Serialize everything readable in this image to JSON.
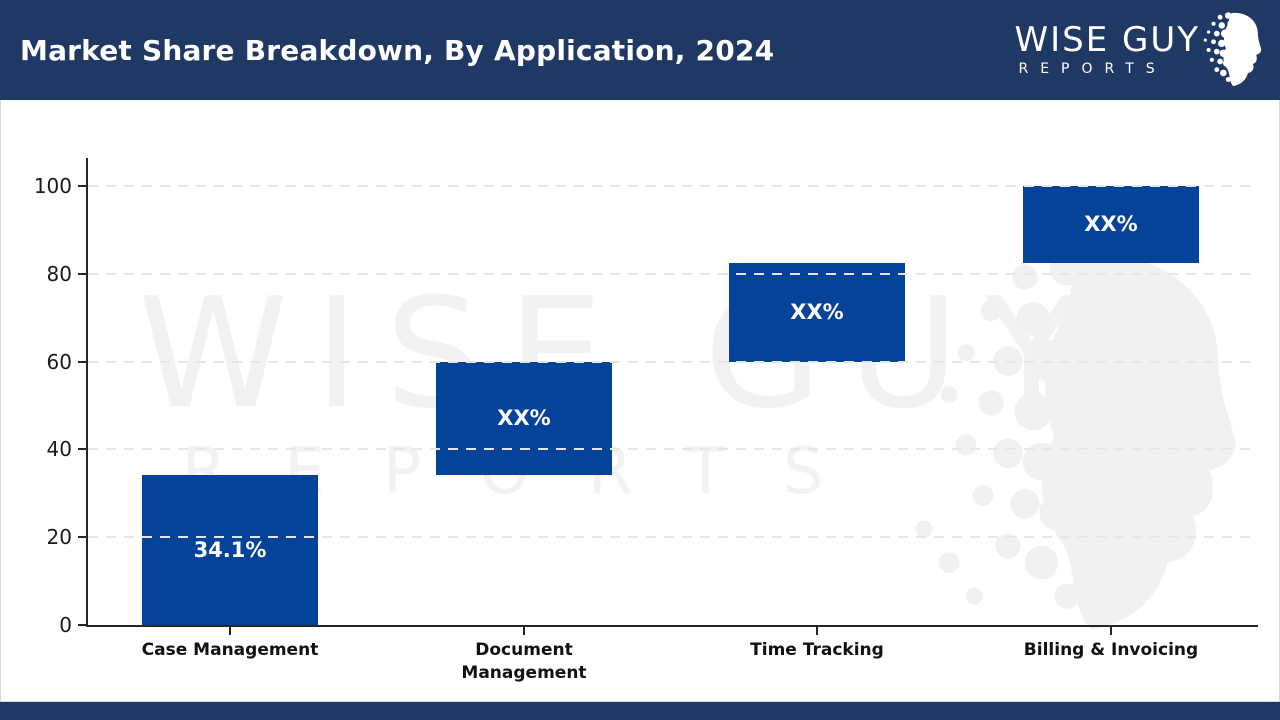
{
  "header": {
    "title": "Market Share Breakdown, By Application, 2024",
    "logo": {
      "name": "Wise Guy Reports",
      "line1": "WISE GUY",
      "line2": "REPORTS"
    }
  },
  "watermark": {
    "line1": "WISE GUY",
    "line2": "REPORTS"
  },
  "colors": {
    "header_bg": "#1F3864",
    "footer_bg": "#1F3864",
    "title_text": "#FFFFFF",
    "bar": "#05439B",
    "bar_label": "#FFFFFF",
    "axis": "#262626",
    "grid": "#E6E6E6",
    "tick_label": "#1A1A1A",
    "category_label": "#111111",
    "watermark": "#F2F2F2",
    "frame_border": "#D9D9D9"
  },
  "chart_data": {
    "type": "bar",
    "subtype": "waterfall-stacked-segments",
    "title": "Market Share Breakdown, By Application, 2024",
    "unit": "%",
    "categories": [
      "Case Management",
      "Document Management",
      "Time Tracking",
      "Billing & Invoicing"
    ],
    "segments": [
      {
        "category": "Case Management",
        "start": 0,
        "end": 34.1,
        "value": 34.1,
        "label": "34.1%"
      },
      {
        "category": "Document Management",
        "start": 34.1,
        "end": 60.0,
        "value": 25.9,
        "label": "XX%"
      },
      {
        "category": "Time Tracking",
        "start": 60.0,
        "end": 82.5,
        "value": 22.5,
        "label": "XX%"
      },
      {
        "category": "Billing & Invoicing",
        "start": 82.5,
        "end": 100.0,
        "value": 17.5,
        "label": "XX%"
      }
    ],
    "yticks": [
      0,
      20,
      40,
      60,
      80,
      100
    ],
    "ylim": [
      0,
      100
    ],
    "xlabel": "",
    "ylabel": "",
    "grid": "horizontal-dashed",
    "legend": "none"
  }
}
